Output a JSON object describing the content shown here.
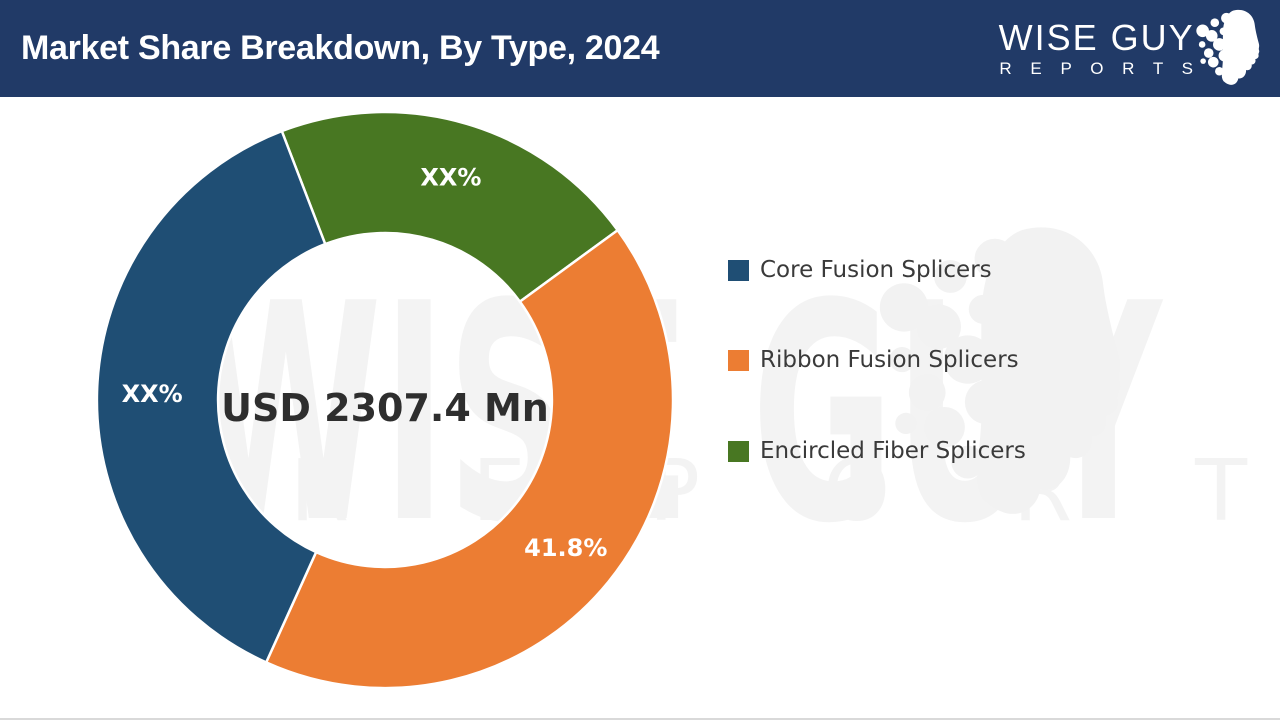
{
  "header": {
    "title": "Market Share Breakdown, By Type, 2024",
    "bg_color": "#213a67",
    "logo": {
      "line1": "WISE GUY",
      "line2": "R E P O R T S"
    }
  },
  "chart_data": {
    "type": "pie",
    "subtype": "donut",
    "title": "Market Share Breakdown, By Type, 2024",
    "center_label": "USD 2307.4 Mn",
    "start_angle_deg": -21,
    "direction": "clockwise",
    "label_color": "#ffffff",
    "segments": [
      {
        "name": "Encircled Fiber Splicers",
        "label": "XX%",
        "value_pct": 20.8,
        "color": "#487722"
      },
      {
        "name": "Ribbon Fusion Splicers",
        "label": "41.8%",
        "value_pct": 41.8,
        "color": "#ec7d33"
      },
      {
        "name": "Core Fusion Splicers",
        "label": "XX%",
        "value_pct": 37.4,
        "color": "#1f4e74"
      }
    ]
  },
  "legend": {
    "items": [
      {
        "label": "Core Fusion Splicers",
        "color": "#1f4e74"
      },
      {
        "label": "Ribbon Fusion Splicers",
        "color": "#ec7d33"
      },
      {
        "label": "Encircled Fiber Splicers",
        "color": "#487722"
      }
    ]
  },
  "watermark": {
    "line1": "WISE GUY",
    "line2": "R E P O R T S"
  }
}
